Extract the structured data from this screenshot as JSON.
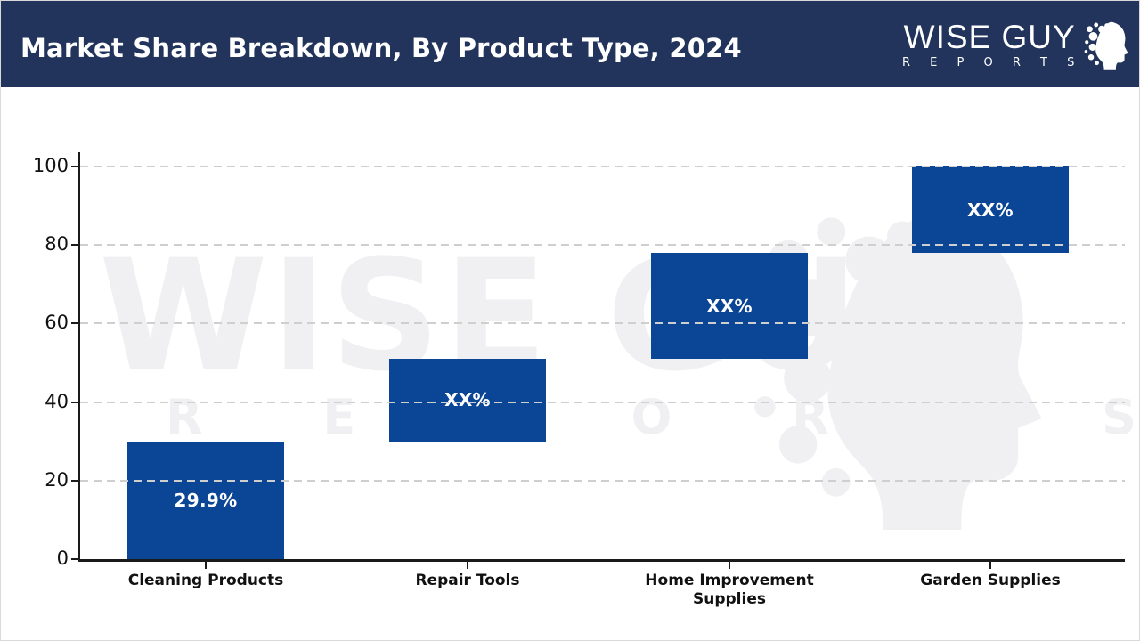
{
  "header": {
    "title": "Market Share Breakdown, By Product Type, 2024",
    "bg_color": "#22345c",
    "brand": {
      "name": "WISE GUY",
      "sub": "R E P O R T S"
    }
  },
  "watermark": {
    "line1": "WISE GUY",
    "line2": "R E P O R T S"
  },
  "chart_data": {
    "type": "bar",
    "subtype": "waterfall",
    "title": "Market Share Breakdown, By Product Type, 2024",
    "categories": [
      "Cleaning Products",
      "Repair Tools",
      "Home Improvement Supplies",
      "Garden Supplies"
    ],
    "series": [
      {
        "name": "Market Share (%)",
        "segments": [
          {
            "category": "Cleaning Products",
            "start": 0,
            "end": 29.9,
            "label": "29.9%"
          },
          {
            "category": "Repair Tools",
            "start": 30,
            "end": 51,
            "label": "XX%"
          },
          {
            "category": "Home Improvement Supplies",
            "start": 51,
            "end": 78,
            "label": "XX%"
          },
          {
            "category": "Garden Supplies",
            "start": 78,
            "end": 100,
            "label": "XX%"
          }
        ]
      }
    ],
    "xlabel": "",
    "ylabel": "",
    "ylim": [
      0,
      107
    ],
    "yticks": [
      0,
      20,
      40,
      60,
      80,
      100
    ],
    "grid": "horizontal-dashed",
    "grid_over_bars": true,
    "legend": "none",
    "bar_color": "#0a4596",
    "bar_label_color": "#ffffff",
    "axis_color": "#1a1a1a",
    "gridline_color": "#cfcfcf"
  }
}
